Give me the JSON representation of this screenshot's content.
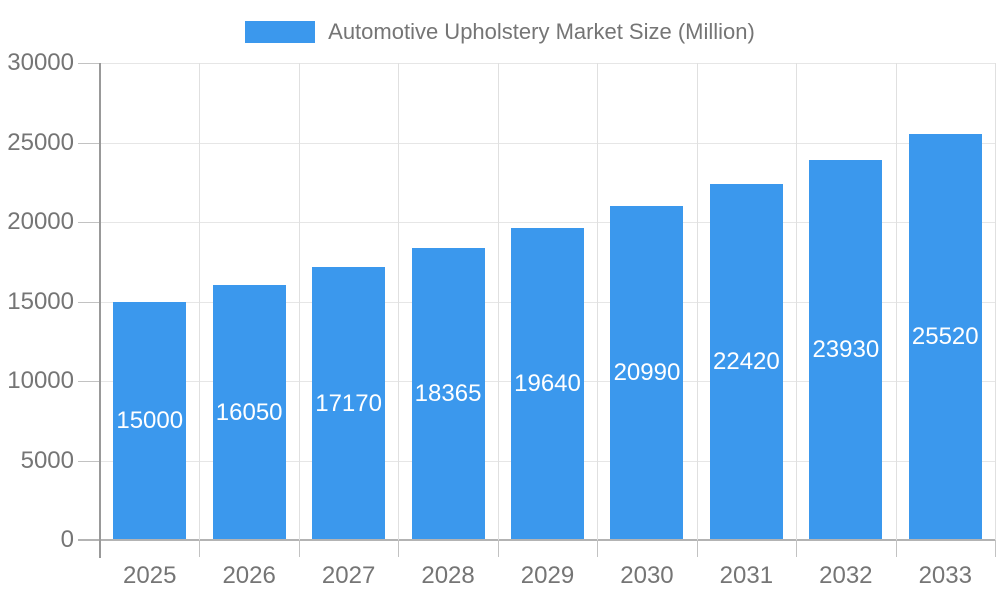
{
  "legend": {
    "label": "Automotive Upholstery Market Size (Million)"
  },
  "colors": {
    "bar": "#3B98ED",
    "grid_h": "#E6E6E6",
    "grid_v": "#E0E0E0",
    "x_axis_line": "#B3B3B3",
    "y_axis_line": "#999999",
    "tick_mark": "#C2C2C2",
    "tick_text": "#757575",
    "bar_value_text": "#FFFFFF",
    "background": "#FFFFFF"
  },
  "chart_data": {
    "type": "bar",
    "title": "Automotive Upholstery Market Size (Million)",
    "categories": [
      "2025",
      "2026",
      "2027",
      "2028",
      "2029",
      "2030",
      "2031",
      "2032",
      "2033"
    ],
    "values": [
      15000,
      16050,
      17170,
      18365,
      19640,
      20990,
      22420,
      23930,
      25520
    ],
    "xlabel": "",
    "ylabel": "",
    "ylim": [
      0,
      30000
    ],
    "y_ticks": [
      0,
      5000,
      10000,
      15000,
      20000,
      25000,
      30000
    ],
    "grid": "horizontal-and-vertical",
    "legend_position": "top",
    "bar_value_labels": "inside-center-white"
  }
}
